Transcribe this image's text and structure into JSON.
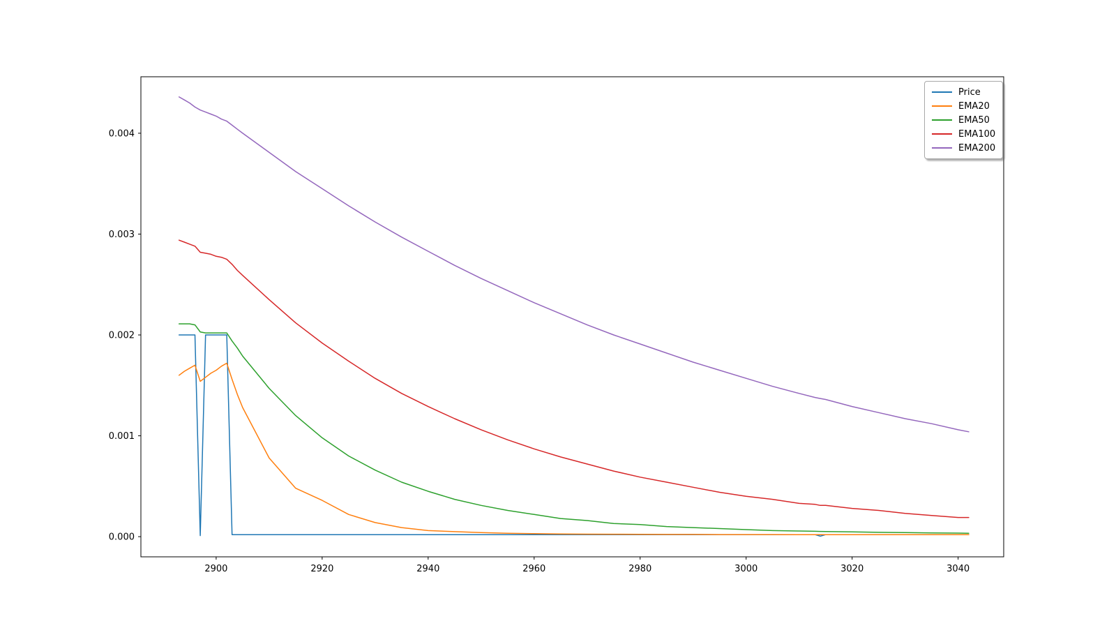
{
  "figure": {
    "background": "#ffffff",
    "frame_color": "#000000",
    "tick_color": "#000000",
    "label_color": "#000000"
  },
  "chart_data": {
    "type": "line",
    "title": "",
    "xlabel": "",
    "ylabel": "",
    "grid": false,
    "xlim": [
      2885.8,
      3048.6
    ],
    "ylim": [
      -0.0002,
      0.00456
    ],
    "xticks": {
      "values": [
        2900,
        2920,
        2940,
        2960,
        2980,
        3000,
        3020,
        3040
      ],
      "labels": [
        "2900",
        "2920",
        "2940",
        "2960",
        "2980",
        "3000",
        "3020",
        "3040"
      ]
    },
    "yticks": {
      "values": [
        0.0,
        0.001,
        0.002,
        0.003,
        0.004
      ],
      "labels": [
        "0.000",
        "0.001",
        "0.002",
        "0.003",
        "0.004"
      ]
    },
    "legend": {
      "position": "upper right",
      "shadow": true,
      "border_color": "#a8a8a8"
    },
    "x": [
      2893,
      2894,
      2895,
      2896,
      2897,
      2898,
      2899,
      2900,
      2901,
      2902,
      2903,
      2904,
      2905,
      2910,
      2915,
      2920,
      2925,
      2930,
      2935,
      2940,
      2945,
      2950,
      2955,
      2960,
      2965,
      2970,
      2975,
      2980,
      2985,
      2990,
      2995,
      3000,
      3005,
      3010,
      3013,
      3014,
      3015,
      3020,
      3025,
      3030,
      3035,
      3040,
      3042
    ],
    "series": [
      {
        "name": "Price",
        "color": "#1f77b4",
        "values": [
          0.002,
          0.002,
          0.002,
          0.002,
          1e-05,
          0.002,
          0.002,
          0.002,
          0.002,
          0.002,
          2e-05,
          2e-05,
          2e-05,
          2e-05,
          2e-05,
          2e-05,
          2e-05,
          2e-05,
          2e-05,
          2e-05,
          2e-05,
          2e-05,
          2e-05,
          2e-05,
          2e-05,
          2e-05,
          2e-05,
          2e-05,
          2e-05,
          2e-05,
          2e-05,
          2e-05,
          2e-05,
          2e-05,
          2e-05,
          5e-06,
          2e-05,
          2e-05,
          2e-05,
          2e-05,
          2e-05,
          2e-05,
          2e-05
        ]
      },
      {
        "name": "EMA20",
        "color": "#ff7f0e",
        "values": [
          0.0016,
          0.00164,
          0.00167,
          0.0017,
          0.00154,
          0.00158,
          0.00162,
          0.00165,
          0.00169,
          0.00172,
          0.00156,
          0.00141,
          0.00128,
          0.00078,
          0.00048,
          0.00036,
          0.00022,
          0.00014,
          9e-05,
          6e-05,
          5e-05,
          4e-05,
          3.4e-05,
          3e-05,
          2.7e-05,
          2.5e-05,
          2.4e-05,
          2.3e-05,
          2.2e-05,
          2.2e-05,
          2.1e-05,
          2.1e-05,
          2.1e-05,
          2e-05,
          2e-05,
          2e-05,
          2e-05,
          2e-05,
          2e-05,
          2e-05,
          2e-05,
          2e-05,
          2e-05
        ]
      },
      {
        "name": "EMA50",
        "color": "#2ca02c",
        "values": [
          0.00211,
          0.00211,
          0.00211,
          0.0021,
          0.00203,
          0.00202,
          0.00202,
          0.00202,
          0.00202,
          0.00202,
          0.00194,
          0.00187,
          0.00179,
          0.00147,
          0.0012,
          0.00098,
          0.0008,
          0.00066,
          0.00054,
          0.00045,
          0.00037,
          0.00031,
          0.00026,
          0.00022,
          0.00018,
          0.00016,
          0.00013,
          0.00012,
          0.0001,
          9e-05,
          8e-05,
          7e-05,
          6e-05,
          5.6e-05,
          5.3e-05,
          5.2e-05,
          5.1e-05,
          4.7e-05,
          4.3e-05,
          4e-05,
          3.7e-05,
          3.5e-05,
          3.4e-05
        ]
      },
      {
        "name": "EMA100",
        "color": "#d62728",
        "values": [
          0.00294,
          0.00292,
          0.0029,
          0.00288,
          0.00282,
          0.00281,
          0.0028,
          0.00278,
          0.00277,
          0.00275,
          0.0027,
          0.00264,
          0.00259,
          0.00235,
          0.00212,
          0.00192,
          0.00174,
          0.00157,
          0.00142,
          0.00129,
          0.00117,
          0.00106,
          0.00096,
          0.00087,
          0.00079,
          0.00072,
          0.00065,
          0.00059,
          0.00054,
          0.00049,
          0.00044,
          0.0004,
          0.00037,
          0.00033,
          0.00032,
          0.00031,
          0.00031,
          0.00028,
          0.00026,
          0.00023,
          0.00021,
          0.00019,
          0.00019
        ]
      },
      {
        "name": "EMA200",
        "color": "#9467bd",
        "values": [
          0.00436,
          0.00433,
          0.0043,
          0.00426,
          0.00423,
          0.00421,
          0.00419,
          0.00417,
          0.00414,
          0.00412,
          0.00408,
          0.00404,
          0.004,
          0.00381,
          0.00362,
          0.00345,
          0.00328,
          0.00312,
          0.00297,
          0.00283,
          0.00269,
          0.00256,
          0.00244,
          0.00232,
          0.00221,
          0.0021,
          0.002,
          0.00191,
          0.00182,
          0.00173,
          0.00165,
          0.00157,
          0.00149,
          0.00142,
          0.00138,
          0.00137,
          0.00136,
          0.00129,
          0.00123,
          0.00117,
          0.00112,
          0.00106,
          0.00104
        ]
      }
    ]
  }
}
